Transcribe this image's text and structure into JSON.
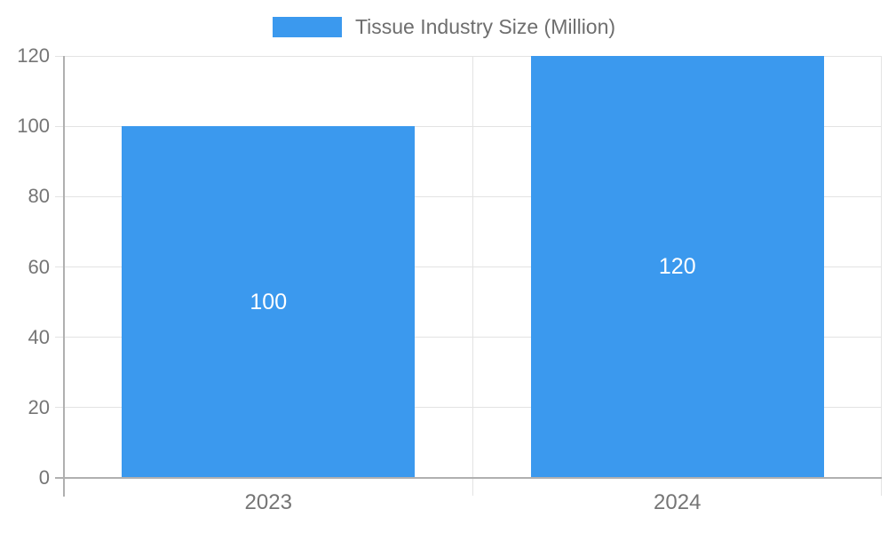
{
  "legend": {
    "label": "Tissue Industry Size (Million)"
  },
  "chart_data": {
    "type": "bar",
    "title": "",
    "categories": [
      "2023",
      "2024"
    ],
    "series": [
      {
        "name": "Tissue Industry Size (Million)",
        "values": [
          100,
          120
        ]
      }
    ],
    "data_labels": [
      "100",
      "120"
    ],
    "xlabel": "",
    "ylabel": "",
    "ylim": [
      0,
      120
    ],
    "yticks": [
      0,
      20,
      40,
      60,
      80,
      100,
      120
    ],
    "ytick_labels": [
      "0",
      "20",
      "40",
      "60",
      "80",
      "100",
      "120"
    ],
    "grid": true,
    "legend_position": "top"
  },
  "colors": {
    "bar": "#3B99EE",
    "grid": "#E3E3E3",
    "axis": "#B0B0B0",
    "tick_text": "#757575",
    "legend_text": "#6E6E6E",
    "data_label": "#FFFFFF",
    "background": "#FFFFFF"
  }
}
